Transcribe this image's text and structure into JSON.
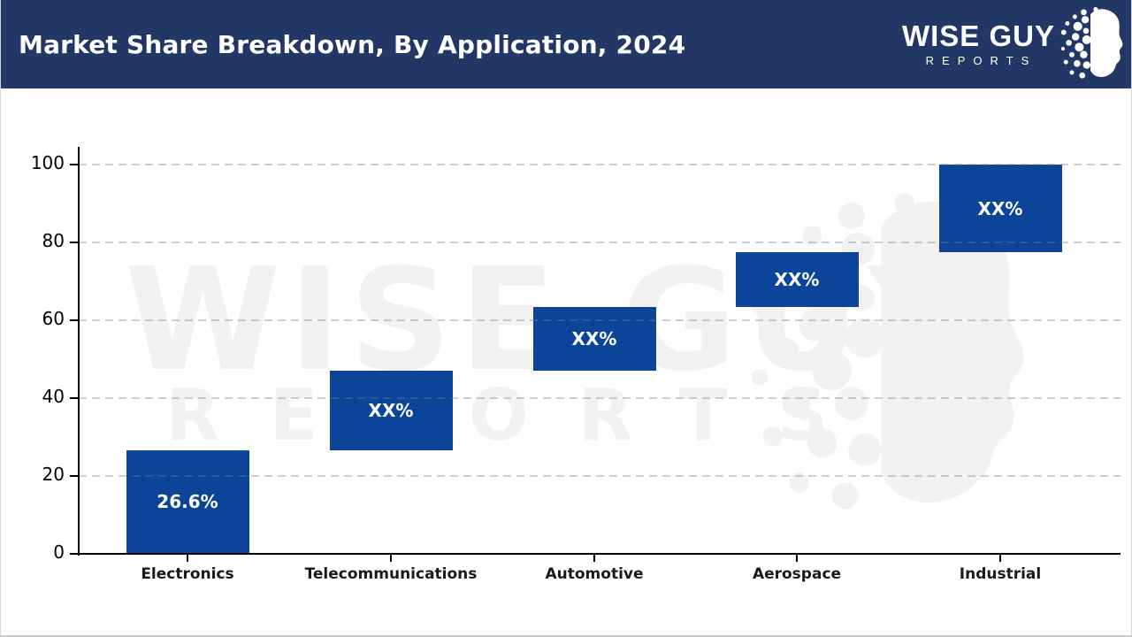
{
  "header": {
    "title": "Market Share Breakdown, By Application, 2024",
    "logo": {
      "wordmark": "WISE GUY",
      "subtext": "REPORTS"
    }
  },
  "watermark": {
    "wordmark": "WISE GUY",
    "subtext": "REPORTS"
  },
  "colors": {
    "header_bg": "#223765",
    "bar": "#0c4499",
    "bar_label_text": "#ffffff",
    "axis": "#000000",
    "gridline": "#d9d9d9",
    "watermark": "#f2f2f2"
  },
  "chart_data": {
    "type": "bar",
    "subtype": "waterfall",
    "title": "Market Share Breakdown, By Application, 2024",
    "xlabel": "",
    "ylabel": "",
    "categories": [
      "Electronics",
      "Telecommunications",
      "Automotive",
      "Aerospace",
      "Industrial"
    ],
    "segments": [
      {
        "category": "Electronics",
        "start": 0,
        "end": 26.6,
        "label": "26.6%"
      },
      {
        "category": "Telecommunications",
        "start": 26.6,
        "end": 47.0,
        "label": "XX%"
      },
      {
        "category": "Automotive",
        "start": 47.0,
        "end": 63.5,
        "label": "XX%"
      },
      {
        "category": "Aerospace",
        "start": 63.5,
        "end": 77.5,
        "label": "XX%"
      },
      {
        "category": "Industrial",
        "start": 77.5,
        "end": 100,
        "label": "XX%"
      }
    ],
    "yticks": [
      0,
      20,
      40,
      60,
      80,
      100
    ],
    "ylim": [
      0,
      105
    ],
    "grid": "dashed-horizontal",
    "legend": "none"
  }
}
